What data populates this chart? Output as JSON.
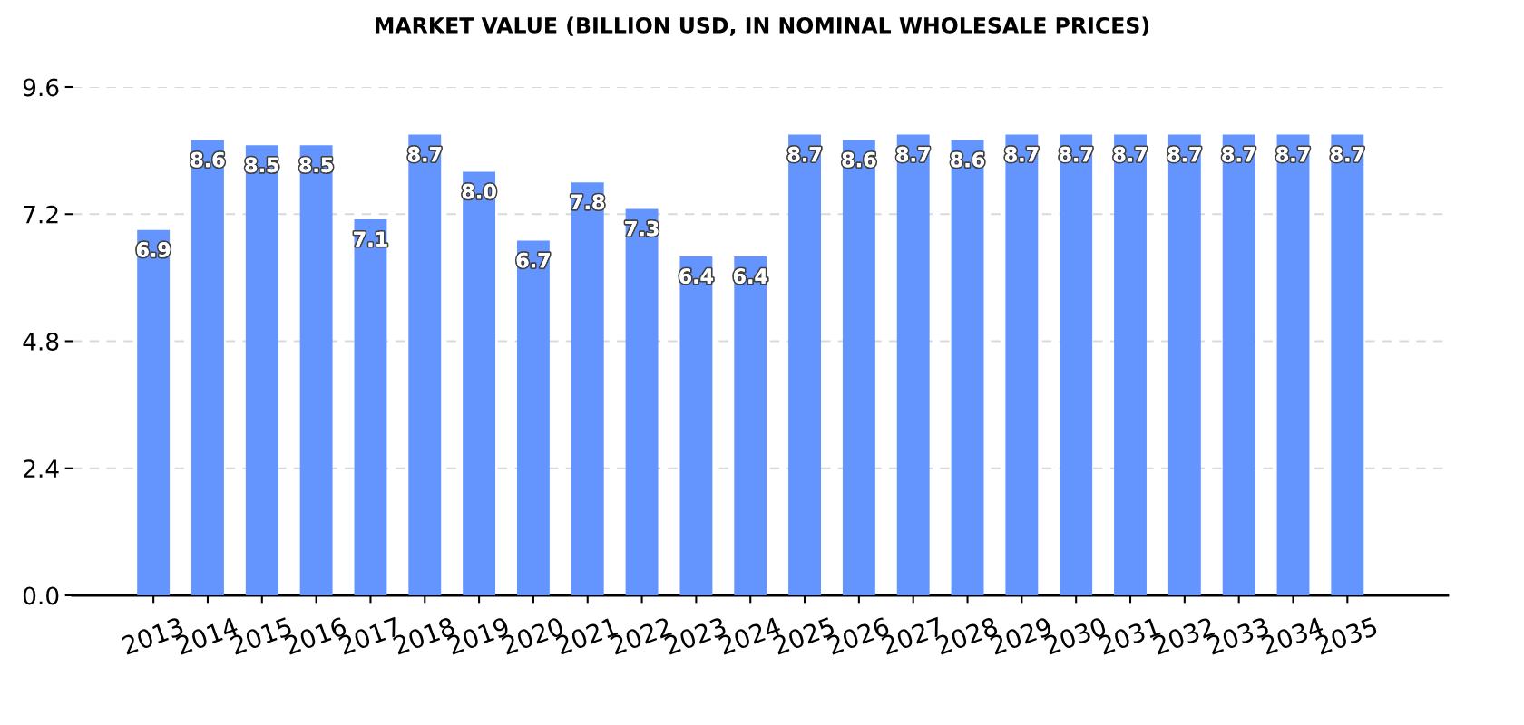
{
  "chart_data": {
    "type": "bar",
    "title": "MARKET VALUE (BILLION USD, IN NOMINAL WHOLESALE PRICES)",
    "categories": [
      "2013",
      "2014",
      "2015",
      "2016",
      "2017",
      "2018",
      "2019",
      "2020",
      "2021",
      "2022",
      "2023",
      "2024",
      "2025",
      "2026",
      "2027",
      "2028",
      "2029",
      "2030",
      "2031",
      "2032",
      "2033",
      "2034",
      "2035"
    ],
    "values": [
      6.9,
      8.6,
      8.5,
      8.5,
      7.1,
      8.7,
      8,
      6.7,
      7.8,
      7.3,
      6.4,
      6.4,
      8.7,
      8.6,
      8.7,
      8.6,
      8.7,
      8.7,
      8.7,
      8.7,
      8.7,
      8.7,
      8.7
    ],
    "value_labels": [
      "6.9",
      "8.6",
      "8.5",
      "8.5",
      "7.1",
      "8.7",
      "8.0",
      "6.7",
      "7.8",
      "7.3",
      "6.4",
      "6.4",
      "8.7",
      "8.6",
      "8.7",
      "8.6",
      "8.7",
      "8.7",
      "8.7",
      "8.7",
      "8.7",
      "8.7",
      "8.7"
    ],
    "color": "#6495ff",
    "ylim": [
      0,
      9.6
    ],
    "yticks": [
      {
        "value": 0,
        "label": "0.0"
      },
      2.4,
      4.8,
      7.2,
      9.6
    ],
    "grid": "y"
  }
}
